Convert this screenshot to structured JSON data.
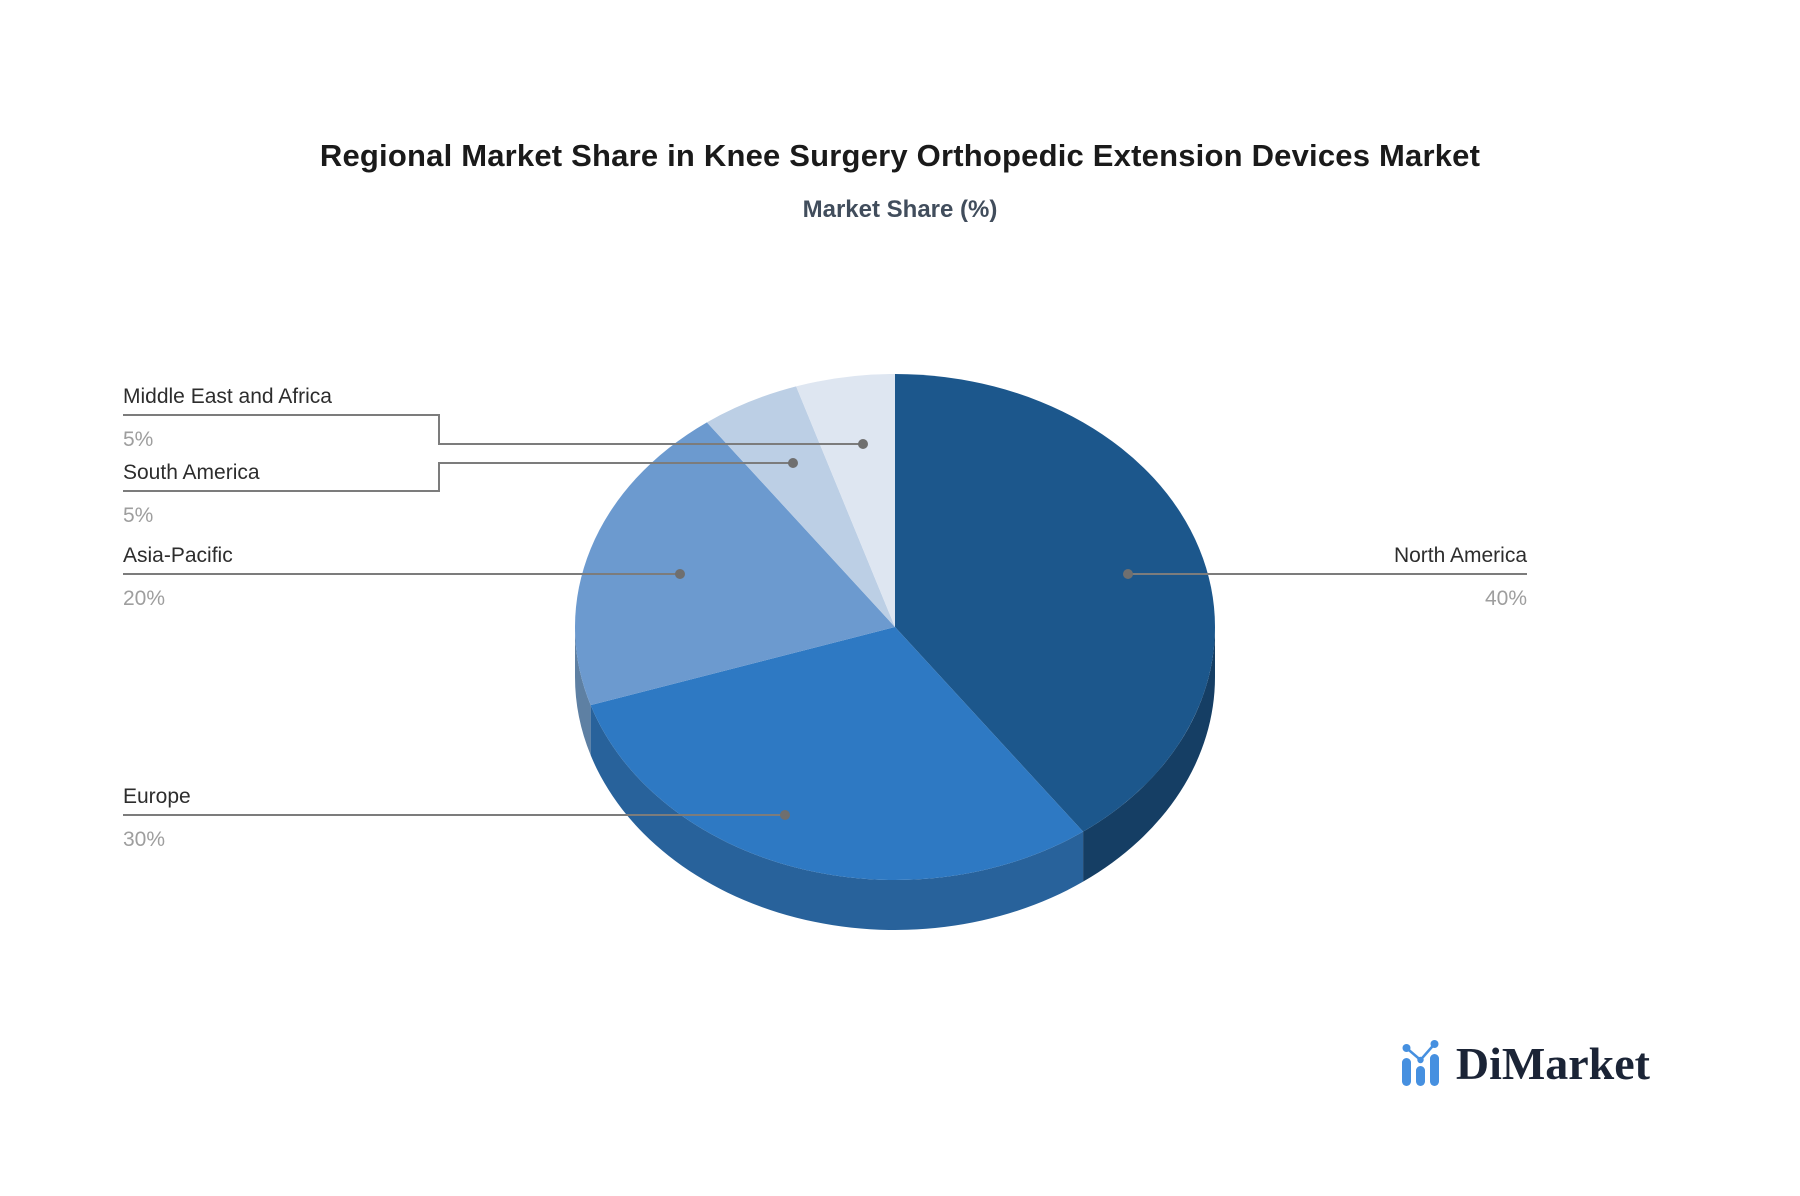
{
  "chart_data": {
    "type": "pie",
    "title": "Regional Market Share in Knee Surgery Orthopedic Extension Devices Market",
    "subtitle": "Market Share (%)",
    "unit": "%",
    "direction": "clockwise",
    "start_angle_deg": 0,
    "legend_position": "callout-labels",
    "effect": "3d",
    "slices": [
      {
        "label": "North America",
        "value": 40,
        "pct_label": "40%",
        "color": "#1C578C",
        "side_color": "#153E64"
      },
      {
        "label": "Europe",
        "value": 30,
        "pct_label": "30%",
        "color": "#2E79C3",
        "side_color": "#28629B"
      },
      {
        "label": "Asia-Pacific",
        "value": 20,
        "pct_label": "20%",
        "color": "#6C9ACF",
        "side_color": "#5E80A3"
      },
      {
        "label": "South America",
        "value": 5,
        "pct_label": "5%",
        "color": "#BCCFE5",
        "side_color": "#9AAFC9"
      },
      {
        "label": "Middle East and Africa",
        "value": 5,
        "pct_label": "5%",
        "color": "#DEE6F1",
        "side_color": "#B8C5D6"
      }
    ]
  },
  "colors": {
    "callout_line": "#7c7c7c",
    "callout_dot": "#6f6f6f",
    "label_text": "#2d2d2d",
    "value_text": "#9e9e9e",
    "title_text": "#1a1a1a",
    "subtitle_text": "#414d5c",
    "logo_blue": "#4690e0",
    "logo_navy": "#1b2436"
  },
  "logo": {
    "brand": "DiMarket",
    "icon": "bar-chart-logo-icon"
  }
}
